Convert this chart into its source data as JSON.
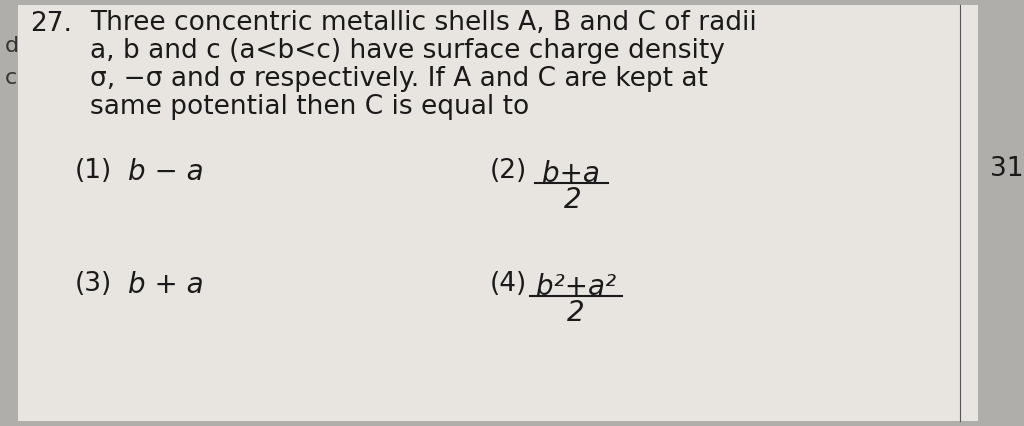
{
  "outer_bg": "#b0aeaa",
  "inner_bg": "#d8d5d0",
  "panel_bg": "#e8e5e0",
  "text_color": "#1a1a1a",
  "q_num": "27.",
  "right_num": "31.",
  "line1": "Three concentric metallic shells A, B and C of radii",
  "line2": "a, b and c (a<b<c) have surface charge density",
  "line3": "σ, −σ and σ respectively. If A and C are kept at",
  "line4": "same potential then C is equal to",
  "opt1_lbl": "(1)",
  "opt1_txt": "b − a",
  "opt2_lbl": "(2)",
  "opt2_num": "b+a",
  "opt2_den": "2",
  "opt3_lbl": "(3)",
  "opt3_txt": "b + a",
  "opt4_lbl": "(4)",
  "opt4_num": "b²+a²",
  "opt4_den": "2",
  "fs_main": 19,
  "fs_opt": 19,
  "fs_side": 16
}
